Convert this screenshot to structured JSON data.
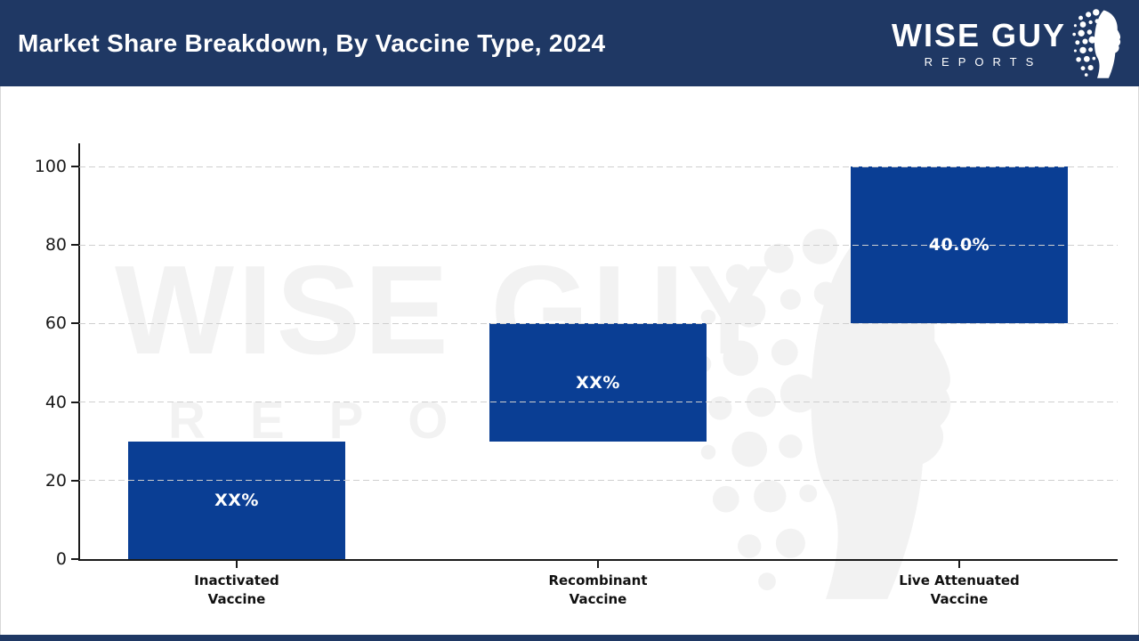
{
  "header": {
    "title": "Market Share Breakdown, By Vaccine Type, 2024",
    "background_color": "#1f3864",
    "logo": {
      "line1": "WISE GUY",
      "line2": "REPORTS"
    }
  },
  "watermark": {
    "line1": "WISE GUY",
    "line2": "REPORTS"
  },
  "chart_data": {
    "type": "bar",
    "subtype": "waterfall",
    "title": "Market Share Breakdown, By Vaccine Type, 2024",
    "categories": [
      "Inactivated\nVaccine",
      "Recombinant\nVaccine",
      "Live Attenuated\nVaccine"
    ],
    "bars": [
      {
        "category": "Inactivated Vaccine",
        "start": 0,
        "end": 30,
        "value_label": "XX%"
      },
      {
        "category": "Recombinant Vaccine",
        "start": 30,
        "end": 60,
        "value_label": "XX%"
      },
      {
        "category": "Live Attenuated Vaccine",
        "start": 60,
        "end": 100,
        "value_label": "40.0%"
      }
    ],
    "bar_color": "#0a3e94",
    "yticks": [
      0,
      20,
      40,
      60,
      80,
      100
    ],
    "ylim": [
      0,
      105
    ],
    "xlabel": "",
    "ylabel": "",
    "grid": "horizontal dashed",
    "legend": "none"
  }
}
